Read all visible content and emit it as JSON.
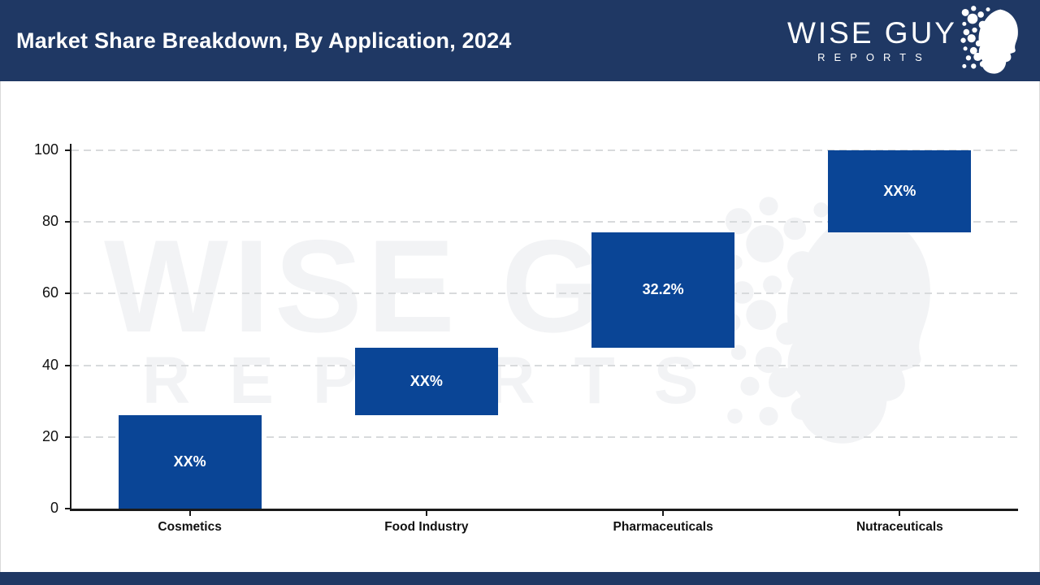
{
  "header": {
    "title": "Market Share Breakdown, By Application, 2024",
    "logo": {
      "wordmark": "WISE GUY",
      "subtitle": "REPORTS"
    }
  },
  "watermark": {
    "line1": "WISE GU",
    "line2": "REPORTS"
  },
  "chart_data": {
    "type": "bar",
    "subtype": "floating-waterfall",
    "title": "Market Share Breakdown, By Application, 2024",
    "categories": [
      "Cosmetics",
      "Food Industry",
      "Pharmaceuticals",
      "Nutraceuticals"
    ],
    "segments": [
      {
        "category": "Cosmetics",
        "start": 0,
        "end": 26,
        "label": "XX%"
      },
      {
        "category": "Food Industry",
        "start": 26,
        "end": 45,
        "label": "XX%"
      },
      {
        "category": "Pharmaceuticals",
        "start": 45,
        "end": 77,
        "label": "32.2%"
      },
      {
        "category": "Nutraceuticals",
        "start": 77,
        "end": 100,
        "label": "XX%"
      }
    ],
    "ylim": [
      0,
      100
    ],
    "yticks": [
      0,
      20,
      40,
      60,
      80,
      100
    ],
    "xlabel": "",
    "ylabel": "",
    "grid": "horizontal-dashed",
    "legend": "none",
    "bar_color": "#0a4596",
    "bar_label_color": "#ffffff"
  },
  "colors": {
    "header_navy": "#1f3864",
    "bar_blue": "#0a4596",
    "watermark_gray": "#f2f3f5",
    "grid_gray": "#d8dadc",
    "axis_black": "#1a1a1a"
  }
}
